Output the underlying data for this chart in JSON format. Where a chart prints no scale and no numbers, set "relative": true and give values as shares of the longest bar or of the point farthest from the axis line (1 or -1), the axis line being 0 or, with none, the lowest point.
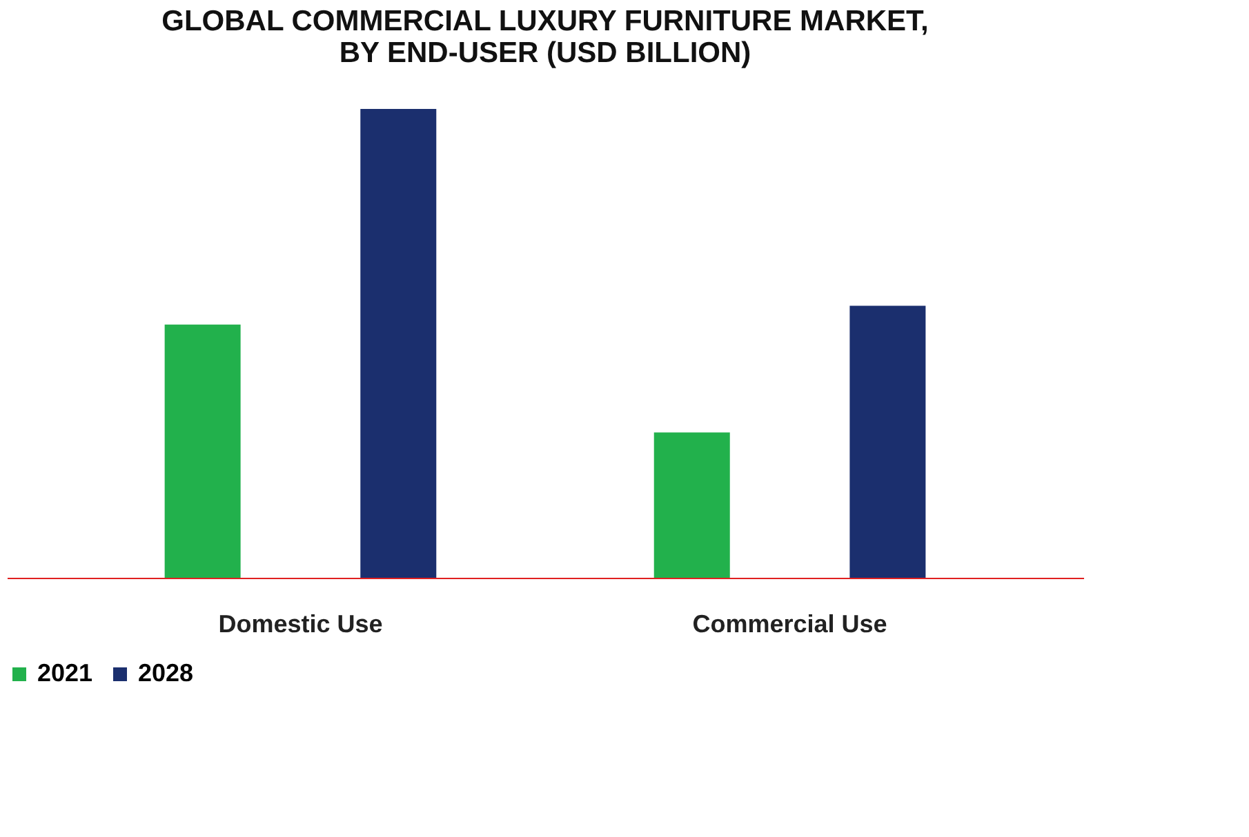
{
  "chart_data": {
    "type": "bar",
    "title": [
      "GLOBAL COMMERCIAL LUXURY FURNITURE MARKET,",
      "BY END-USER (USD BILLION)"
    ],
    "relative": true,
    "legend": "bottom",
    "categories": [
      "Domestic Use",
      "Commercial Use"
    ],
    "series": [
      {
        "name": "2021",
        "color": "#22b14c",
        "values": [
          0.54,
          0.31
        ]
      },
      {
        "name": "2028",
        "color": "#1b2f6e",
        "values": [
          1,
          0.58
        ]
      }
    ]
  }
}
